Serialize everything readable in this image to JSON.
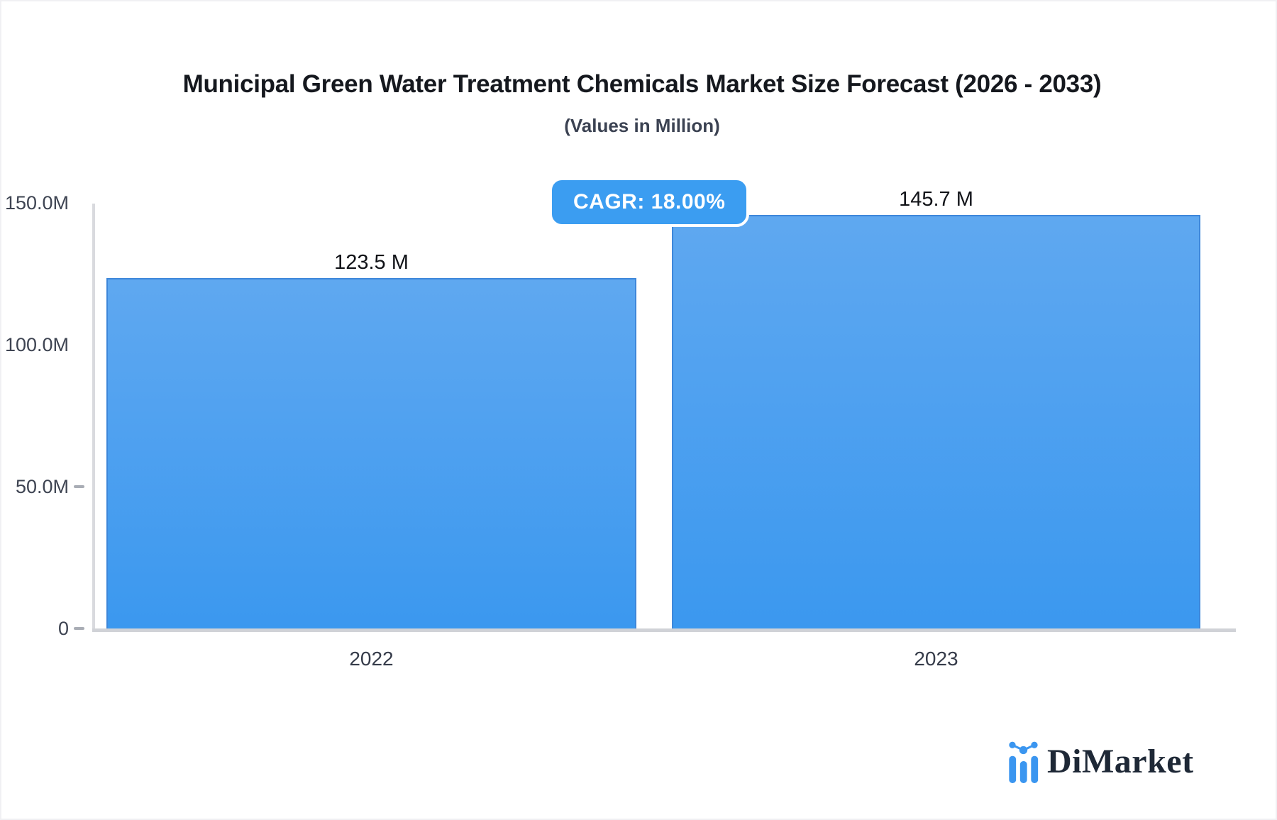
{
  "header": {
    "title": "Municipal Green Water Treatment Chemicals Market Size Forecast (2026 - 2033)",
    "subtitle": "(Values in Million)"
  },
  "badge": {
    "label": "CAGR: 18.00%"
  },
  "y_axis": {
    "tick_labels": [
      "150.0M",
      "100.0M",
      "50.0M",
      "0"
    ]
  },
  "x_axis": {
    "labels": [
      "2022",
      "2023"
    ]
  },
  "watermark": {
    "brand": "DiMarket",
    "icon": "bar-chart-logo-icon"
  },
  "colors": {
    "accent": "#3b9df1",
    "bar_top": "#5fa8f0",
    "bar_bottom": "#3b98ef",
    "bar_border": "#3e87da",
    "logo_blue": "#3b96f0",
    "logo_navy": "#1e2836",
    "axis_gray": "#d9dade",
    "title_text": "#15181e"
  },
  "chart_data": {
    "type": "bar",
    "title": "Municipal Green Water Treatment Chemicals Market Size Forecast (2026 - 2033)",
    "subtitle": "(Values in Million)",
    "categories": [
      "2022",
      "2023"
    ],
    "values": [
      123.5,
      145.7
    ],
    "value_labels": [
      "123.5 M",
      "145.7 M"
    ],
    "unit": "Million",
    "ylim": [
      0,
      150
    ],
    "ytick_step": 50,
    "ytick_labels": [
      "150.0M",
      "100.0M",
      "50.0M",
      "0"
    ],
    "grid": false,
    "legend": false,
    "annotations": [
      {
        "text": "CAGR: 18.00%",
        "position": "top-center"
      }
    ]
  }
}
